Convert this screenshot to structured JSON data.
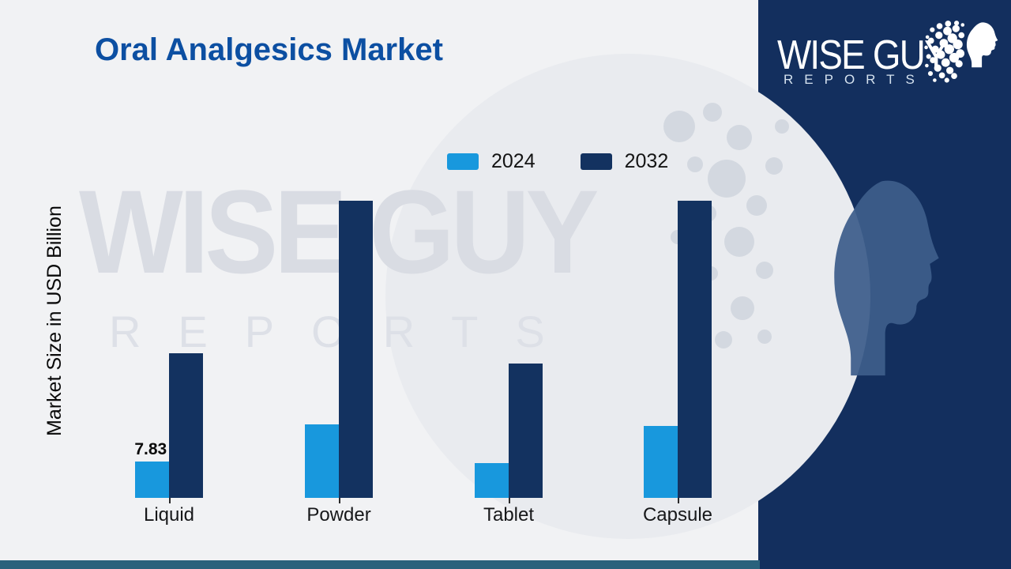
{
  "title": "Oral Analgesics Market",
  "ylabel": "Market Size in USD Billion",
  "legend": {
    "items": [
      {
        "label": "2024",
        "color": "#1898dd"
      },
      {
        "label": "2032",
        "color": "#133260"
      }
    ]
  },
  "chart_data": {
    "type": "bar",
    "title": "Oral Analgesics Market",
    "xlabel": "",
    "ylabel": "Market Size in USD Billion",
    "categories": [
      "Liquid",
      "Powder",
      "Tablet",
      "Capsule"
    ],
    "series": [
      {
        "name": "2024",
        "color": "#1898dd",
        "values": [
          7.83,
          15.8,
          7.5,
          15.5
        ]
      },
      {
        "name": "2032",
        "color": "#133260",
        "values": [
          31.0,
          63.7,
          28.9,
          63.8
        ]
      }
    ],
    "annotations": [
      {
        "text": "7.83",
        "series": "2024",
        "category": "Liquid"
      }
    ],
    "ylim": [
      0,
      70
    ],
    "grid": false,
    "y_axis_ticks_visible": false,
    "legend_position": "top-center"
  },
  "watermark": {
    "line1": "WISE GUY",
    "line2": "REPORTS"
  },
  "logo": {
    "line1": "WISE GUY",
    "line2": "REPORTS"
  },
  "colors": {
    "page_background": "#f1f2f4",
    "title": "#0c4fa2",
    "panel": "#132f5e",
    "accent_strip": "#2a627c",
    "watermark": "#d9dce3",
    "face_silhouette": "#3d5e8b"
  }
}
